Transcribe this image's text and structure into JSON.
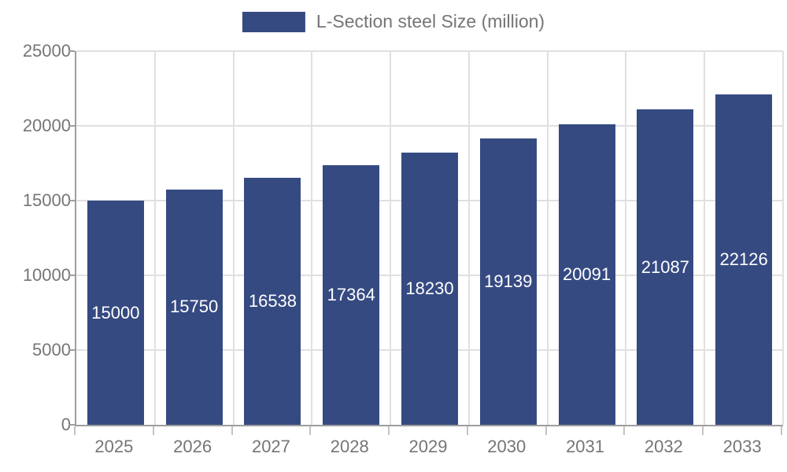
{
  "legend": {
    "label": "L-Section steel Size (million)"
  },
  "chart_data": {
    "type": "bar",
    "title": "",
    "xlabel": "",
    "ylabel": "",
    "series_name": "L-Section steel Size (million)",
    "categories": [
      "2025",
      "2026",
      "2027",
      "2028",
      "2029",
      "2030",
      "2031",
      "2032",
      "2033"
    ],
    "values": [
      15000,
      15750,
      16538,
      17364,
      18230,
      19139,
      20091,
      21087,
      22126
    ],
    "ylim": [
      0,
      25000
    ],
    "yticks": [
      0,
      5000,
      10000,
      15000,
      20000,
      25000
    ],
    "grid": true,
    "legend_position": "top-center",
    "bar_color": "#364A82",
    "bar_label_color": "#ffffff",
    "axis_text_color": "#757575",
    "gridline_color": "#e0e0e0",
    "axis_line_color": "#9e9e9e"
  }
}
